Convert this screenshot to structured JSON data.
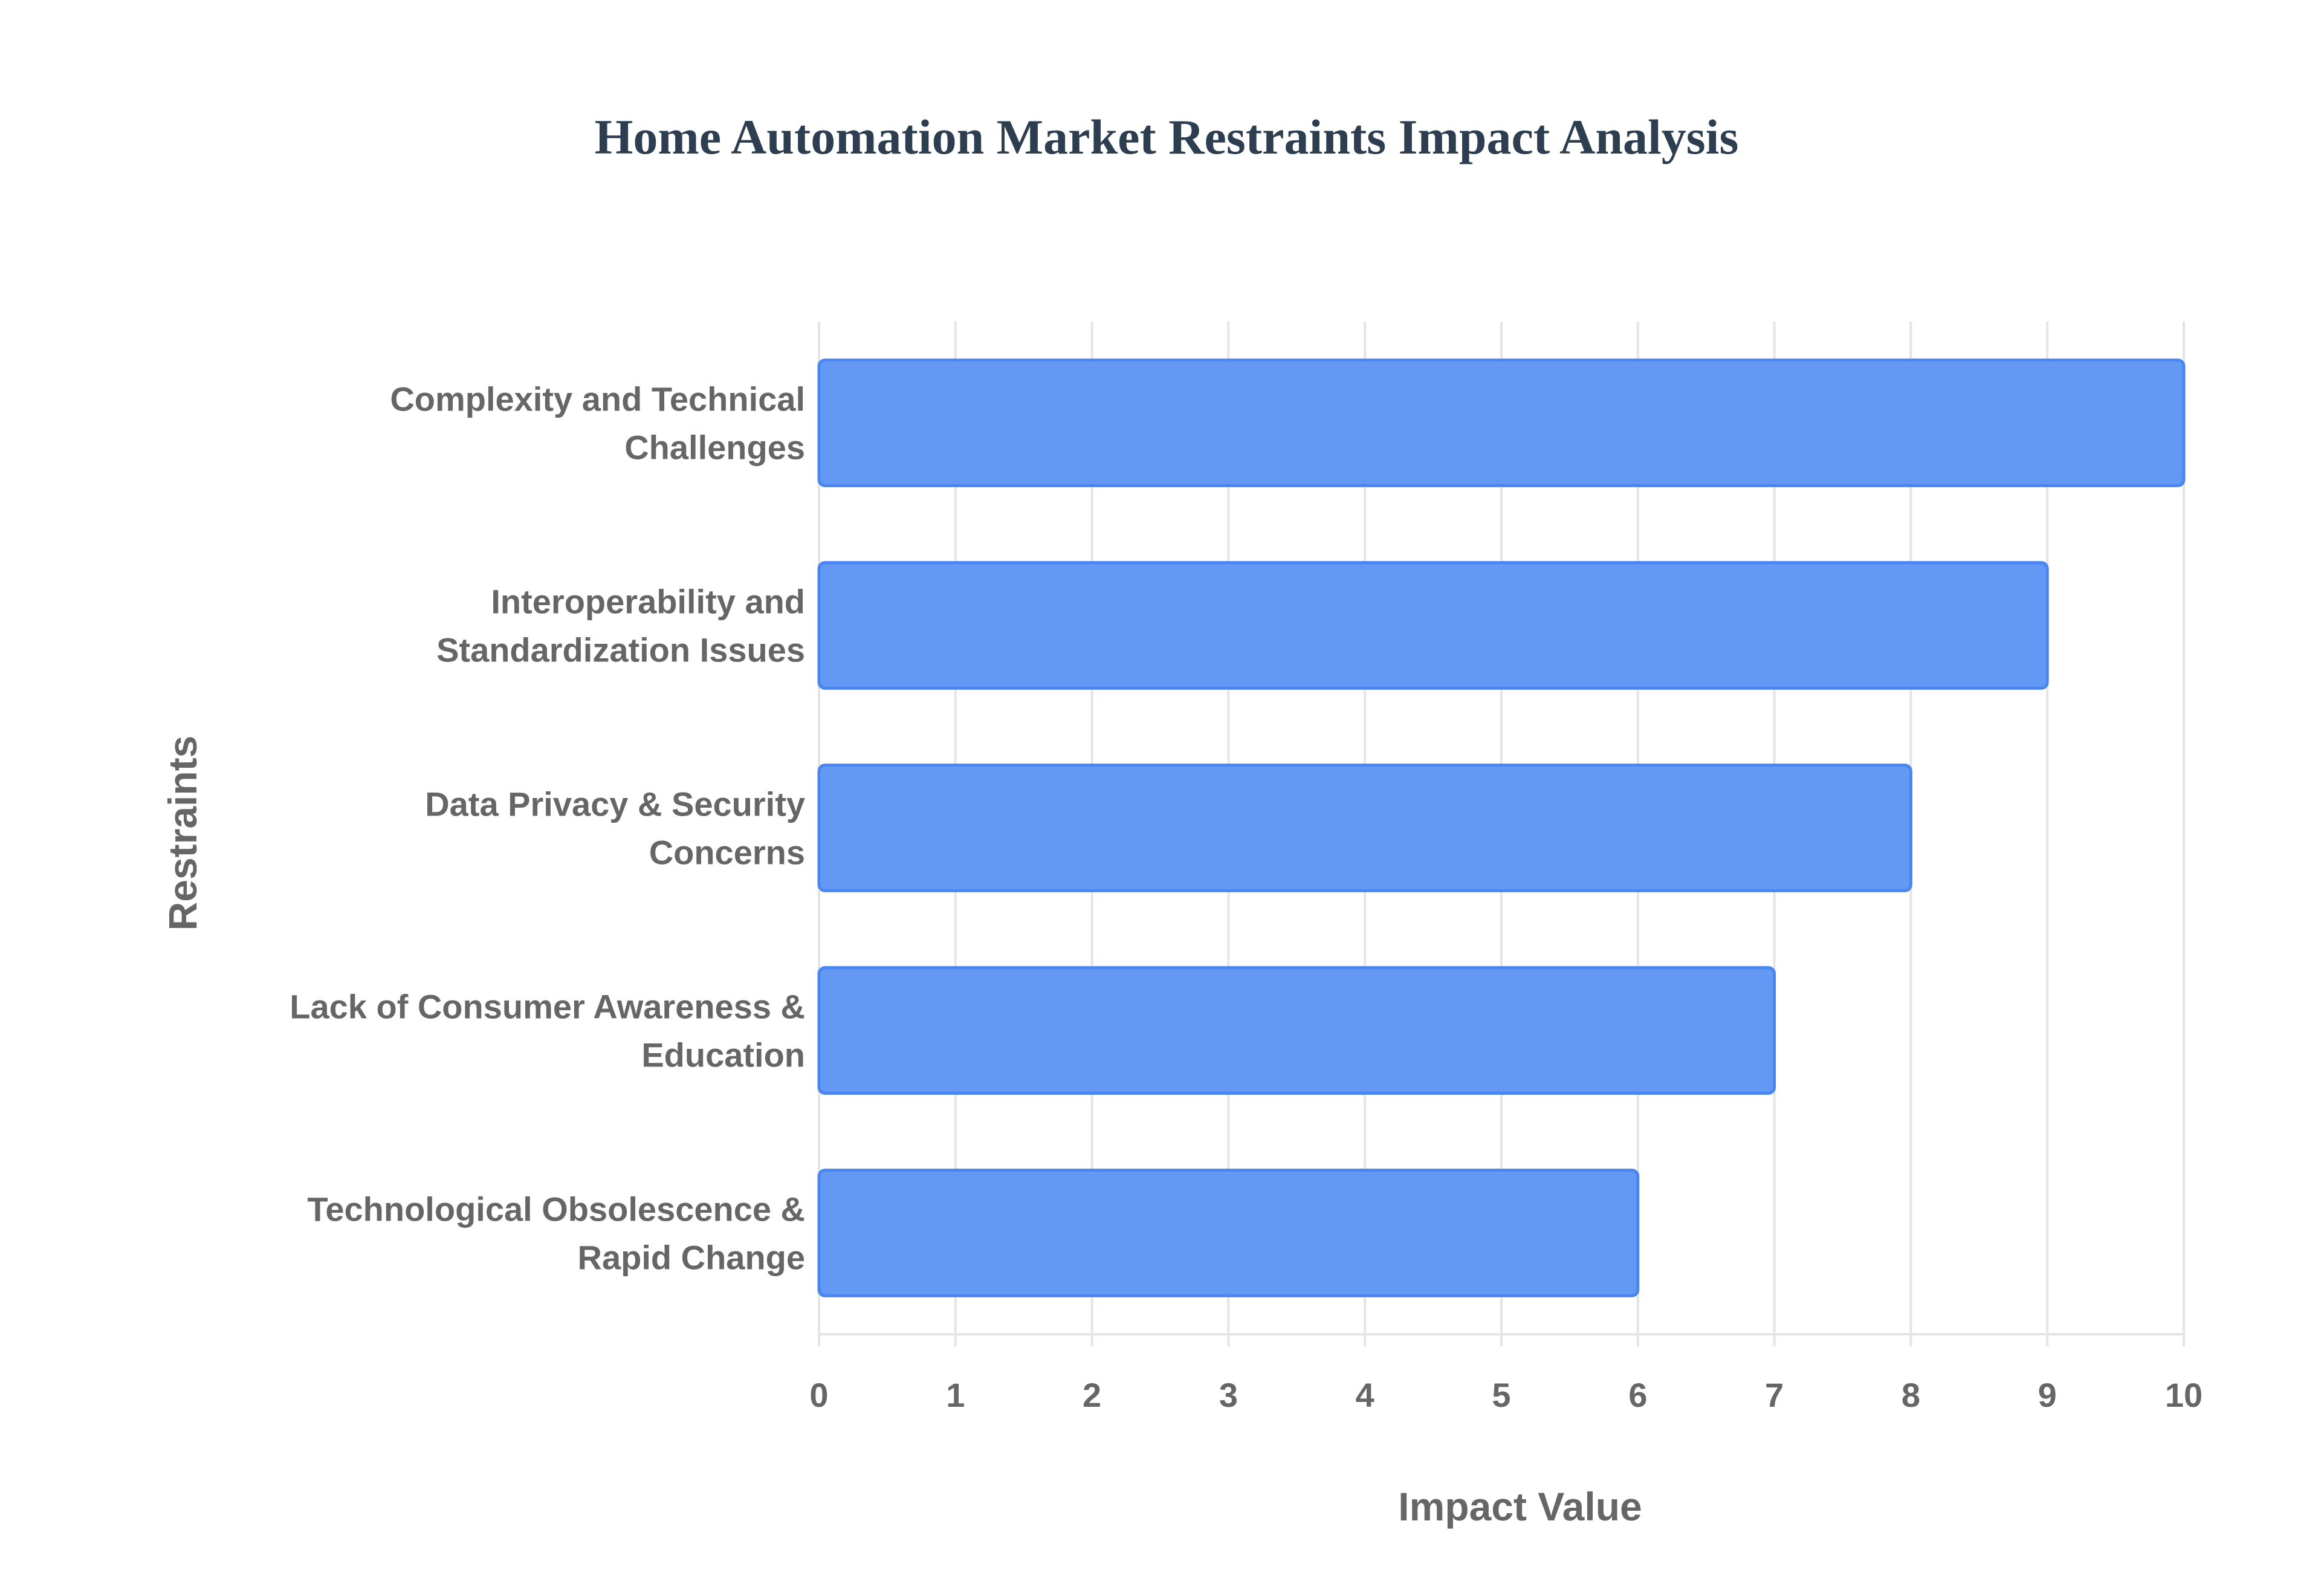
{
  "chart_data": {
    "type": "bar",
    "orientation": "horizontal",
    "title": "Home Automation Market Restraints Impact Analysis",
    "xlabel": "Impact Value",
    "ylabel": "Restraints",
    "categories": [
      [
        "Complexity and Technical",
        "Challenges"
      ],
      [
        "Interoperability and",
        "Standardization Issues"
      ],
      [
        "Data Privacy & Security",
        "Concerns"
      ],
      [
        "Lack of Consumer Awareness &",
        "Education"
      ],
      [
        "Technological Obsolescence &",
        "Rapid Change"
      ]
    ],
    "values": [
      10,
      9,
      8,
      7,
      6
    ],
    "xlim": [
      0,
      10
    ],
    "xticks": [
      0,
      1,
      2,
      3,
      4,
      5,
      6,
      7,
      8,
      9,
      10
    ],
    "grid": true,
    "legend": "none",
    "colors": {
      "bar_fill": "#6399f5",
      "bar_border": "#4a86f0",
      "grid": "#e5e5e5",
      "text": "#666666",
      "title": "#2c3e50"
    }
  }
}
